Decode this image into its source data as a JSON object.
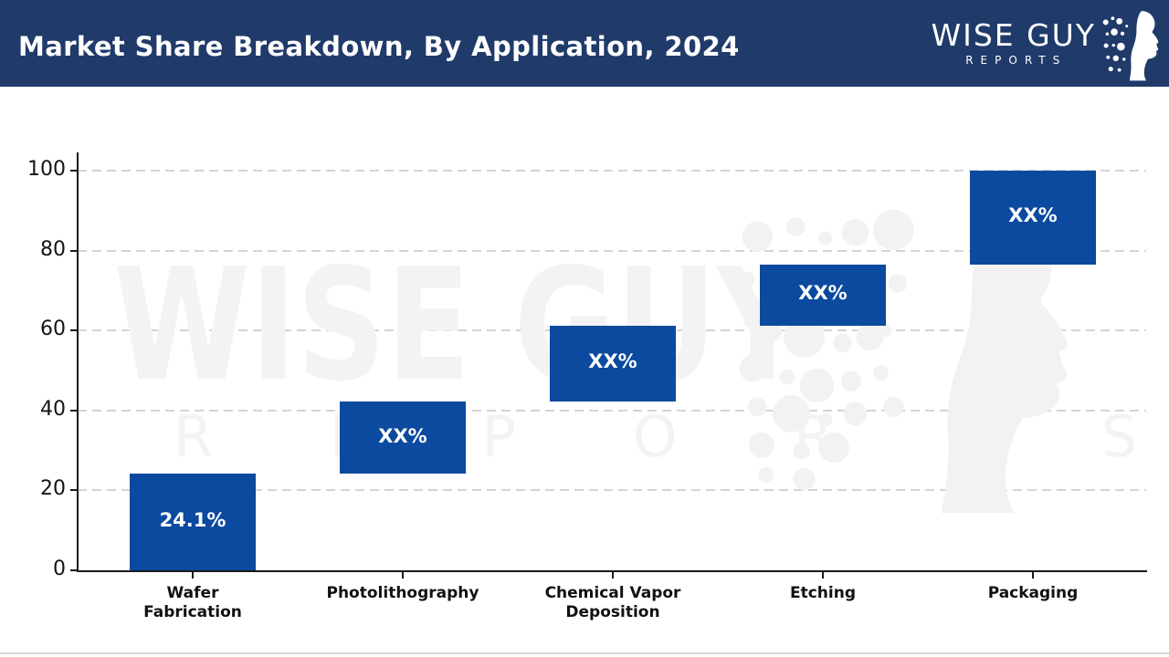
{
  "header": {
    "title": "Market Share Breakdown, By Application, 2024",
    "logo": {
      "wise": "WISE GUY",
      "reports": "REPORTS"
    }
  },
  "watermark": {
    "wise": "WISE GUY",
    "reports": "R E P O R T S"
  },
  "chart_data": {
    "type": "bar",
    "subtype": "waterfall",
    "title": "Market Share Breakdown, By Application, 2024",
    "categories": [
      "Wafer Fabrication",
      "Photolithography",
      "Chemical Vapor Deposition",
      "Etching",
      "Packaging"
    ],
    "series": [
      {
        "name": "Market share (%)",
        "segments": [
          {
            "category": "Wafer Fabrication",
            "start": 0,
            "end": 24.1,
            "label": "24.1%"
          },
          {
            "category": "Photolithography",
            "start": 24.1,
            "end": 42.3,
            "label": "XX%"
          },
          {
            "category": "Chemical Vapor Deposition",
            "start": 42.3,
            "end": 61.2,
            "label": "XX%"
          },
          {
            "category": "Etching",
            "start": 61.2,
            "end": 76.5,
            "label": "XX%"
          },
          {
            "category": "Packaging",
            "start": 76.5,
            "end": 100,
            "label": "XX%"
          }
        ]
      }
    ],
    "xlabel": "",
    "ylabel": "",
    "ylim": [
      0,
      100
    ],
    "yticks": [
      0,
      20,
      40,
      60,
      80,
      100
    ],
    "grid": "horizontal-dashed",
    "legend": "none",
    "bar_color": "#0b4a9e",
    "value_label_color": "#ffffff"
  },
  "colors": {
    "header_bg": "#203a6a",
    "bar": "#0b4a9e",
    "axis": "#1a1a1a",
    "gridline": "#d4d4d4",
    "watermark": "#f3f3f5",
    "background": "#ffffff"
  }
}
